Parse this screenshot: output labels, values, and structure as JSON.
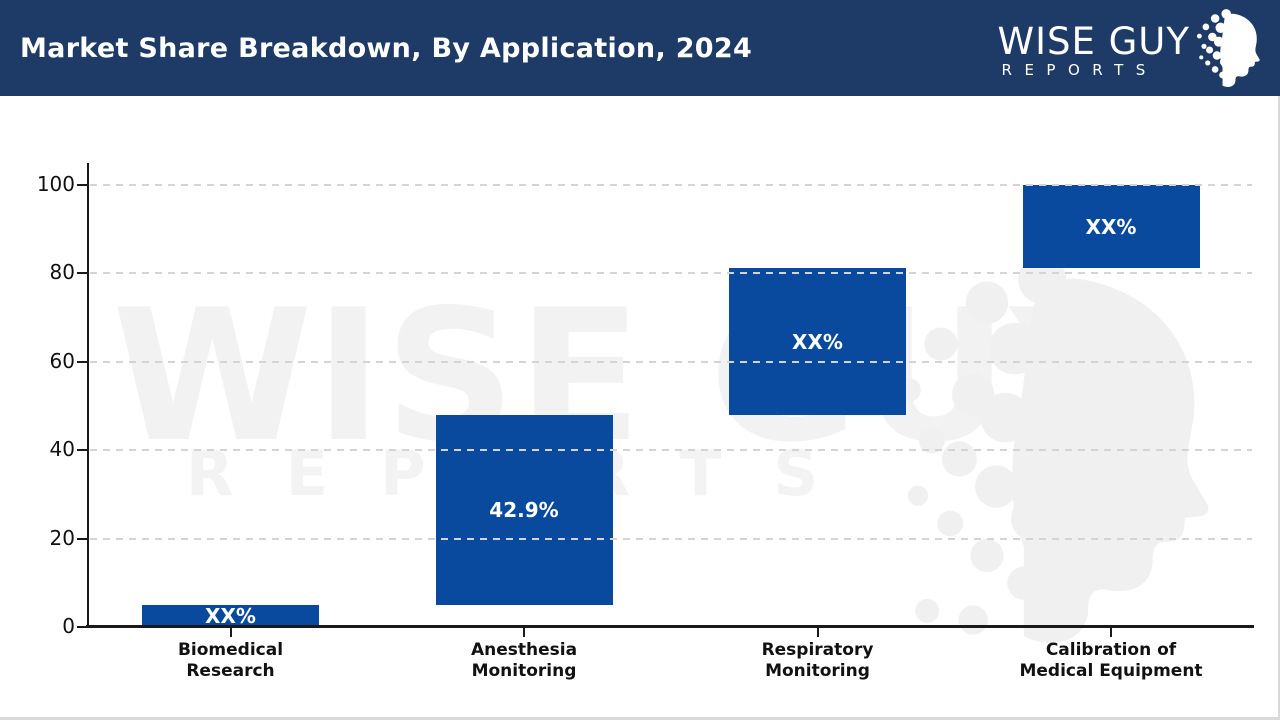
{
  "header": {
    "title": "Market Share Breakdown, By Application, 2024",
    "bg_color": "#1e3a67",
    "logo": {
      "name": "WISE GUY",
      "sub": "REPORTS"
    }
  },
  "watermark": {
    "line1": "WISE GUY",
    "line2": "REPORTS"
  },
  "chart_data": {
    "type": "bar",
    "subtype": "waterfall",
    "title": "Market Share Breakdown, By Application, 2024",
    "categories": [
      "Biomedical Research",
      "Anesthesia Monitoring",
      "Respiratory Monitoring",
      "Calibration of Medical Equipment"
    ],
    "category_lines": [
      [
        "Biomedical",
        "Research"
      ],
      [
        "Anesthesia",
        "Monitoring"
      ],
      [
        "Respiratory",
        "Monitoring"
      ],
      [
        "Calibration of",
        "Medical Equipment"
      ]
    ],
    "segments": [
      {
        "category": "Biomedical Research",
        "start": 0,
        "end": 5,
        "value_label": "XX%"
      },
      {
        "category": "Anesthesia Monitoring",
        "start": 5,
        "end": 47.9,
        "value": 42.9,
        "value_label": "42.9%"
      },
      {
        "category": "Respiratory Monitoring",
        "start": 47.9,
        "end": 81.2,
        "value_label": "XX%"
      },
      {
        "category": "Calibration of Medical Equipment",
        "start": 81.2,
        "end": 100,
        "value_label": "XX%"
      }
    ],
    "yticks": [
      0,
      20,
      40,
      60,
      80,
      100
    ],
    "ylim": [
      0,
      105
    ],
    "xlabel": "",
    "ylabel": "",
    "grid": "horizontal-dashed",
    "legend": "none",
    "bar_color": "#0a4a9e",
    "bar_label_color": "#ffffff",
    "axis_color": "#1a1a1a"
  }
}
